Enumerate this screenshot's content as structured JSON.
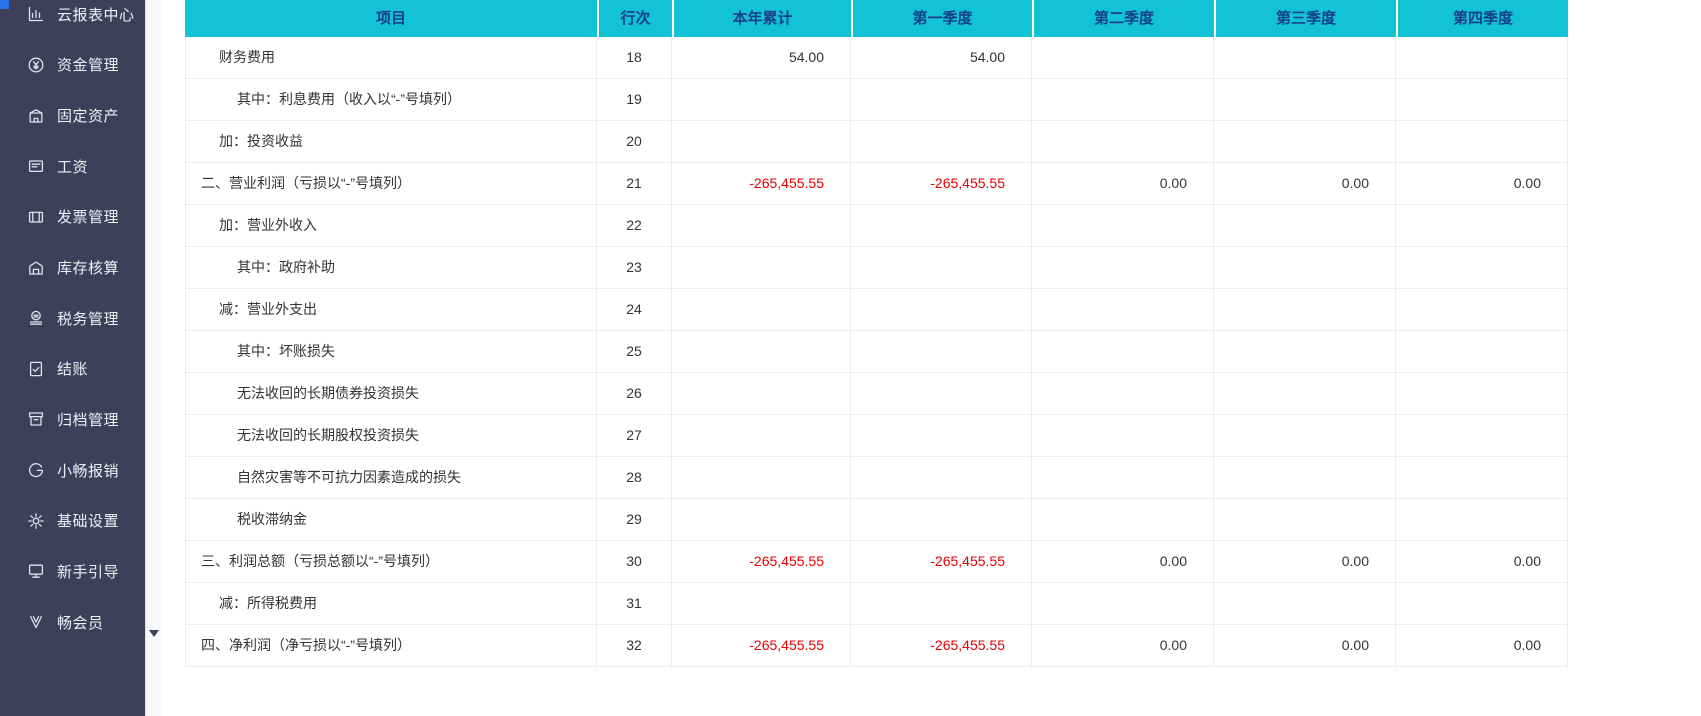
{
  "colors": {
    "sidebar_bg": "#3e4059",
    "sidebar_text": "#eef0f7",
    "header_bg": "#12c3d8",
    "header_text": "#16408a",
    "negative": "#e60000",
    "accent_fragment": "#2a72e8"
  },
  "sidebar": {
    "items": [
      {
        "label": "云报表中心",
        "icon": "report-chart-icon"
      },
      {
        "label": "资金管理",
        "icon": "funds-icon"
      },
      {
        "label": "固定资产",
        "icon": "fixed-assets-icon"
      },
      {
        "label": "工资",
        "icon": "salary-icon"
      },
      {
        "label": "发票管理",
        "icon": "invoice-icon"
      },
      {
        "label": "库存核算",
        "icon": "inventory-icon"
      },
      {
        "label": "税务管理",
        "icon": "tax-icon"
      },
      {
        "label": "结账",
        "icon": "closing-icon"
      },
      {
        "label": "归档管理",
        "icon": "archive-icon"
      },
      {
        "label": "小畅报销",
        "icon": "reimburse-icon"
      },
      {
        "label": "基础设置",
        "icon": "settings-icon"
      },
      {
        "label": "新手引导",
        "icon": "guide-icon"
      },
      {
        "label": "畅会员",
        "icon": "member-icon"
      }
    ]
  },
  "table": {
    "columns": [
      {
        "label": "项目"
      },
      {
        "label": "行次"
      },
      {
        "label": "本年累计"
      },
      {
        "label": "第一季度"
      },
      {
        "label": "第二季度"
      },
      {
        "label": "第三季度"
      },
      {
        "label": "第四季度"
      }
    ],
    "rows": [
      {
        "item": "财务费用",
        "indent": 1,
        "line": "18",
        "values": [
          "54.00",
          "54.00",
          "",
          "",
          ""
        ]
      },
      {
        "item": "其中：利息费用（收入以“-”号填列）",
        "indent": 2,
        "line": "19",
        "values": [
          "",
          "",
          "",
          "",
          ""
        ]
      },
      {
        "item": "加：投资收益",
        "indent": 1,
        "line": "20",
        "values": [
          "",
          "",
          "",
          "",
          ""
        ]
      },
      {
        "item": "二、营业利润（亏损以“-”号填列）",
        "indent": 0,
        "line": "21",
        "values": [
          "-265,455.55",
          "-265,455.55",
          "0.00",
          "0.00",
          "0.00"
        ]
      },
      {
        "item": "加：营业外收入",
        "indent": 1,
        "line": "22",
        "values": [
          "",
          "",
          "",
          "",
          ""
        ]
      },
      {
        "item": "其中：政府补助",
        "indent": 2,
        "line": "23",
        "values": [
          "",
          "",
          "",
          "",
          ""
        ]
      },
      {
        "item": "减：营业外支出",
        "indent": 1,
        "line": "24",
        "values": [
          "",
          "",
          "",
          "",
          ""
        ]
      },
      {
        "item": "其中：坏账损失",
        "indent": 2,
        "line": "25",
        "values": [
          "",
          "",
          "",
          "",
          ""
        ]
      },
      {
        "item": "无法收回的长期债券投资损失",
        "indent": 2,
        "line": "26",
        "values": [
          "",
          "",
          "",
          "",
          ""
        ]
      },
      {
        "item": "无法收回的长期股权投资损失",
        "indent": 2,
        "line": "27",
        "values": [
          "",
          "",
          "",
          "",
          ""
        ]
      },
      {
        "item": "自然灾害等不可抗力因素造成的损失",
        "indent": 2,
        "line": "28",
        "values": [
          "",
          "",
          "",
          "",
          ""
        ]
      },
      {
        "item": "税收滞纳金",
        "indent": 2,
        "line": "29",
        "values": [
          "",
          "",
          "",
          "",
          ""
        ]
      },
      {
        "item": "三、利润总额（亏损总额以“-”号填列）",
        "indent": 0,
        "line": "30",
        "values": [
          "-265,455.55",
          "-265,455.55",
          "0.00",
          "0.00",
          "0.00"
        ]
      },
      {
        "item": "减：所得税费用",
        "indent": 1,
        "line": "31",
        "values": [
          "",
          "",
          "",
          "",
          ""
        ]
      },
      {
        "item": "四、净利润（净亏损以“-”号填列）",
        "indent": 0,
        "line": "32",
        "values": [
          "-265,455.55",
          "-265,455.55",
          "0.00",
          "0.00",
          "0.00"
        ]
      }
    ]
  }
}
